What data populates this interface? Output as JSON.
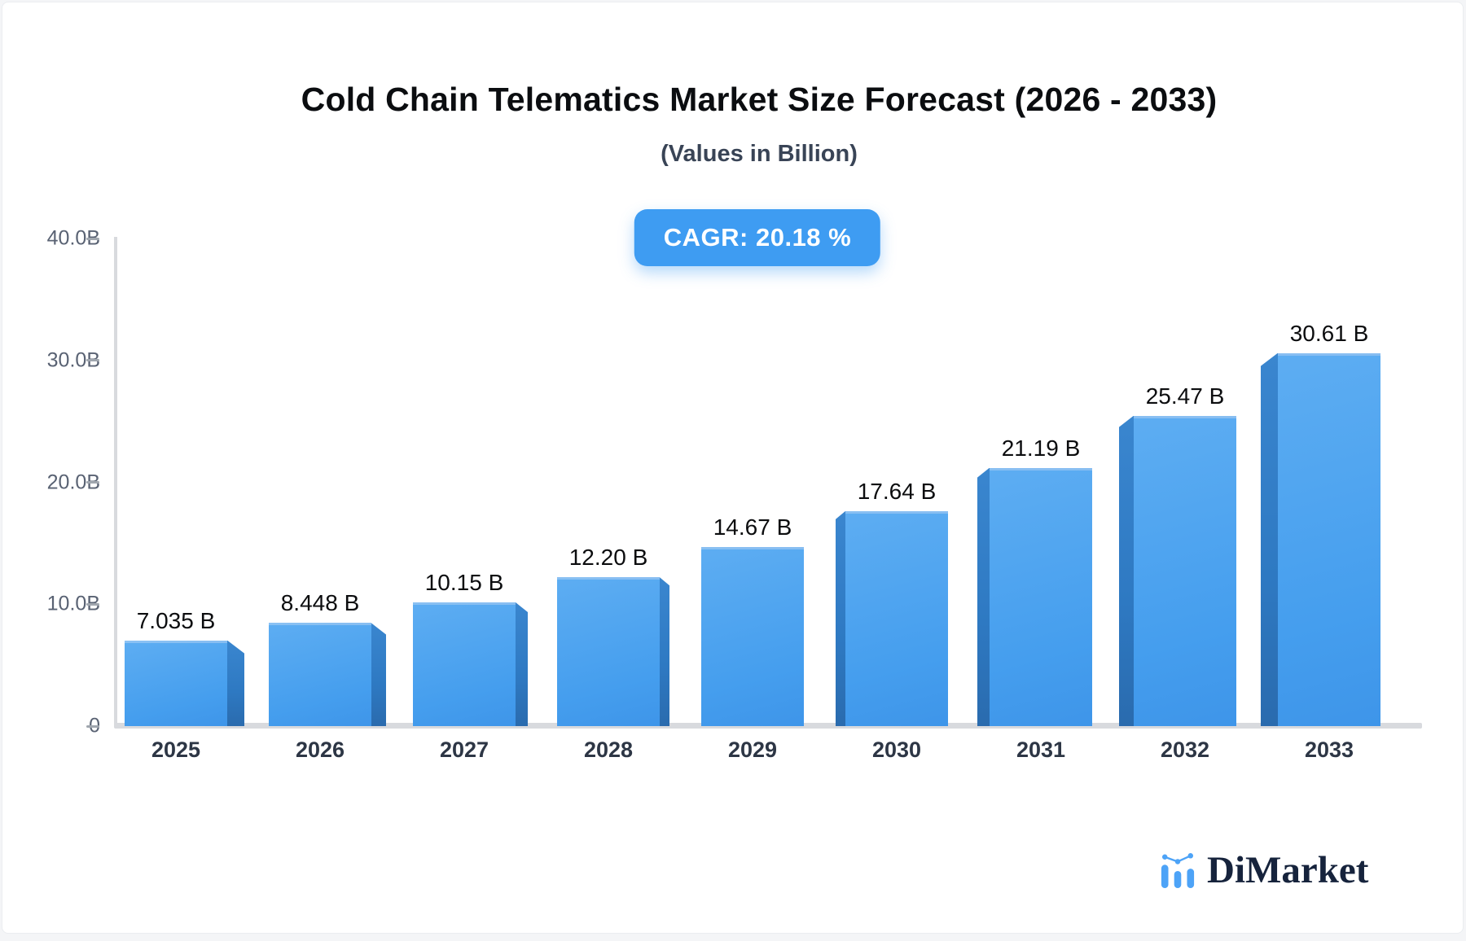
{
  "header": {
    "title": "Cold Chain Telematics Market Size Forecast (2026 - 2033)",
    "subtitle": "(Values in Billion)",
    "cagr_badge": "CAGR: 20.18 %"
  },
  "watermark": {
    "brand": "DiMarket",
    "icon": "bar-chart-logo-icon"
  },
  "colors": {
    "accent": "#3e9cf2",
    "bar_light": "#5dadf2",
    "bar_main": "#459eee",
    "bar_deep": "#3e95e9",
    "side": "#2e79c2",
    "side_light": "#3a86cf",
    "side_dark": "#2a6bae",
    "axis": "#d8dade",
    "value_label": "#0c0d0f",
    "category_label": "#2d3645",
    "ytick_label": "#596273"
  },
  "chart_data": {
    "type": "bar",
    "title": "Cold Chain Telematics Market Size Forecast (2026 - 2033)",
    "subtitle": "(Values in Billion)",
    "cagr_percent": 20.18,
    "categories": [
      "2025",
      "2026",
      "2027",
      "2028",
      "2029",
      "2030",
      "2031",
      "2032",
      "2033"
    ],
    "values": [
      7.035,
      8.448,
      10.15,
      12.2,
      14.67,
      17.64,
      21.19,
      25.47,
      30.61
    ],
    "value_labels": [
      "7.035 B",
      "8.448 B",
      "10.15 B",
      "12.20 B",
      "14.67 B",
      "17.64 B",
      "21.19 B",
      "25.47 B",
      "30.61 B"
    ],
    "unit": "Billion",
    "xlabel": "",
    "ylabel": "",
    "ylim": [
      0,
      40
    ],
    "yticks": [
      {
        "label": "40.0B",
        "value": 40
      },
      {
        "label": "30.0B",
        "value": 30
      },
      {
        "label": "20.0B",
        "value": 20
      },
      {
        "label": "10.0B",
        "value": 10
      },
      {
        "label": "0",
        "value": 0
      }
    ],
    "grid": false,
    "legend": false,
    "style": "3d-perspective-bars"
  }
}
